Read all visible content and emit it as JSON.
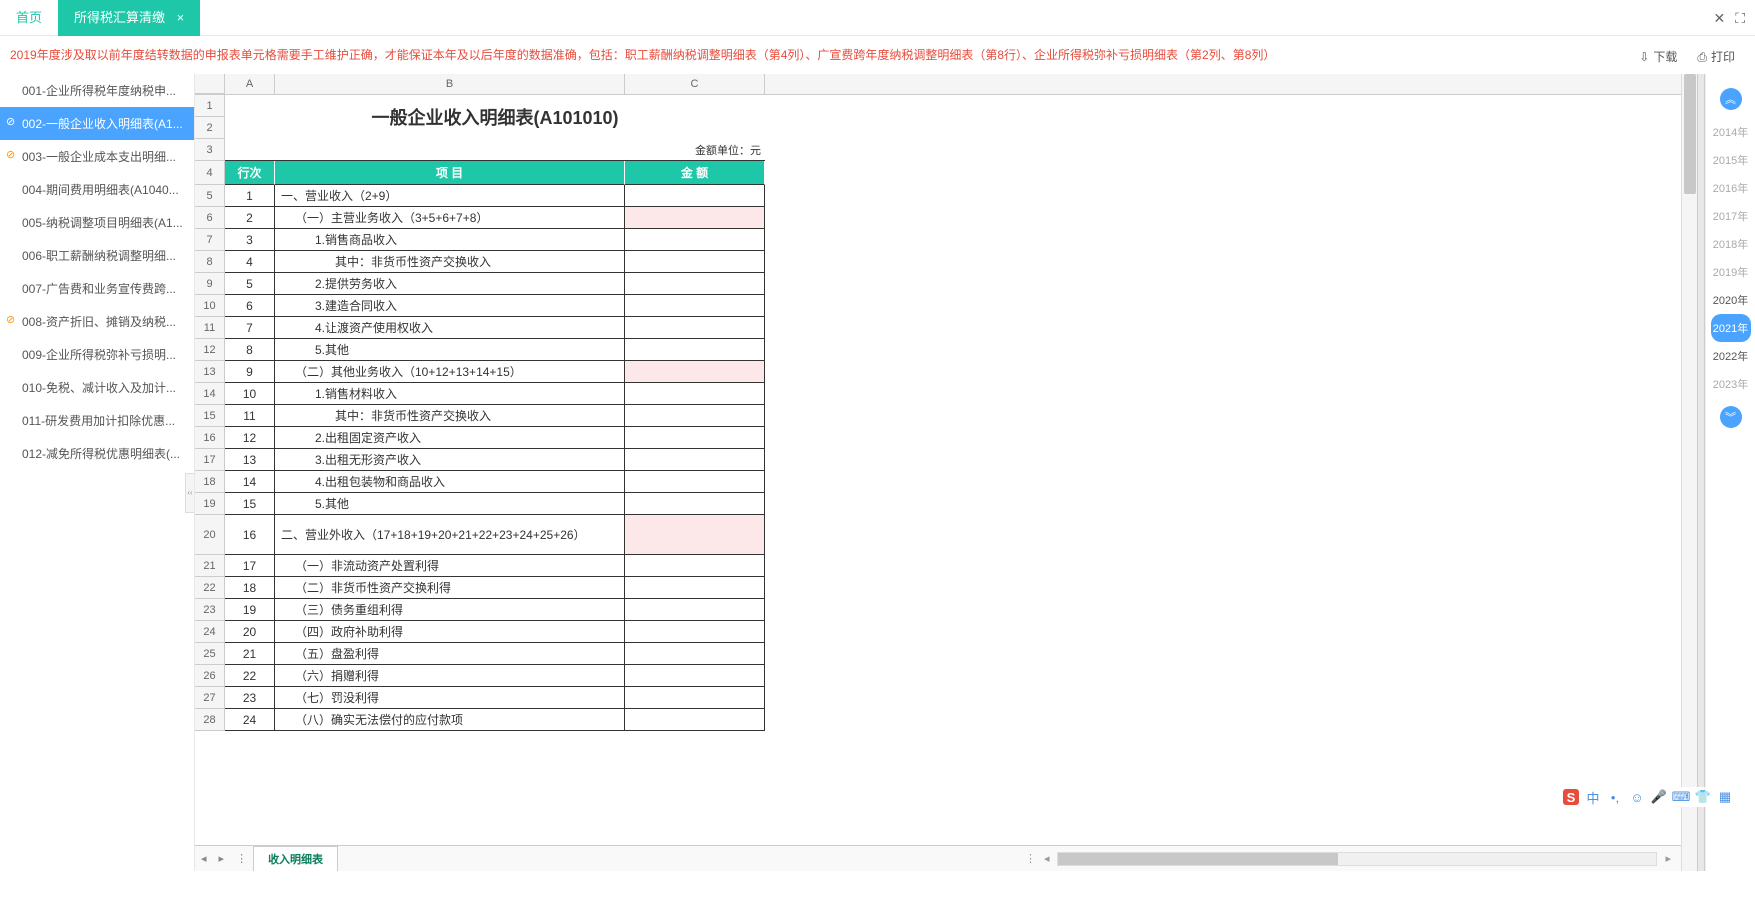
{
  "tabs": {
    "home": "首页",
    "active": "所得税汇算清缴"
  },
  "warning": "2019年度涉及取以前年度结转数据的申报表单元格需要手工维护正确，才能保证本年及以后年度的数据准确，包括：职工薪酬纳税调整明细表（第4列）、广宣费跨年度纳税调整明细表（第8行）、企业所得税弥补亏损明细表（第2列、第8列）",
  "actions": {
    "download": "下载",
    "print": "打印"
  },
  "sidebar": [
    {
      "label": "001-企业所得税年度纳税申...",
      "q": false
    },
    {
      "label": "002-一般企业收入明细表(A1...",
      "q": true,
      "selected": true
    },
    {
      "label": "003-一般企业成本支出明细...",
      "q": true
    },
    {
      "label": "004-期间费用明细表(A1040...",
      "q": false
    },
    {
      "label": "005-纳税调整项目明细表(A1...",
      "q": false
    },
    {
      "label": "006-职工薪酬纳税调整明细...",
      "q": false
    },
    {
      "label": "007-广告费和业务宣传费跨...",
      "q": false
    },
    {
      "label": "008-资产折旧、摊销及纳税...",
      "q": true
    },
    {
      "label": "009-企业所得税弥补亏损明...",
      "q": false
    },
    {
      "label": "010-免税、减计收入及加计...",
      "q": false
    },
    {
      "label": "011-研发费用加计扣除优惠...",
      "q": false
    },
    {
      "label": "012-减免所得税优惠明细表(...",
      "q": false
    }
  ],
  "sheet": {
    "cols": [
      "A",
      "B",
      "C"
    ],
    "title": "一般企业收入明细表(A101010)",
    "unit_label": "金额单位：元",
    "headers": {
      "seq": "行次",
      "item": "项   目",
      "amount": "金   额"
    },
    "rows": [
      {
        "n": "1",
        "t": "一、营业收入（2+9）",
        "pad": 0,
        "pink": false
      },
      {
        "n": "2",
        "t": "（一）主营业务收入（3+5+6+7+8）",
        "pad": 1,
        "pink": true
      },
      {
        "n": "3",
        "t": "1.销售商品收入",
        "pad": 2,
        "pink": false
      },
      {
        "n": "4",
        "t": "其中：非货币性资产交换收入",
        "pad": 3,
        "pink": false
      },
      {
        "n": "5",
        "t": "2.提供劳务收入",
        "pad": 2,
        "pink": false
      },
      {
        "n": "6",
        "t": "3.建造合同收入",
        "pad": 2,
        "pink": false
      },
      {
        "n": "7",
        "t": "4.让渡资产使用权收入",
        "pad": 2,
        "pink": false
      },
      {
        "n": "8",
        "t": "5.其他",
        "pad": 2,
        "pink": false
      },
      {
        "n": "9",
        "t": "（二）其他业务收入（10+12+13+14+15）",
        "pad": 1,
        "pink": true
      },
      {
        "n": "10",
        "t": "1.销售材料收入",
        "pad": 2,
        "pink": false
      },
      {
        "n": "11",
        "t": "其中：非货币性资产交换收入",
        "pad": 3,
        "pink": false
      },
      {
        "n": "12",
        "t": "2.出租固定资产收入",
        "pad": 2,
        "pink": false
      },
      {
        "n": "13",
        "t": "3.出租无形资产收入",
        "pad": 2,
        "pink": false
      },
      {
        "n": "14",
        "t": "4.出租包装物和商品收入",
        "pad": 2,
        "pink": false
      },
      {
        "n": "15",
        "t": "5.其他",
        "pad": 2,
        "pink": false
      },
      {
        "n": "16",
        "t": "二、营业外收入（17+18+19+20+21+22+23+24+25+26）",
        "pad": 0,
        "pink": true,
        "tall": true
      },
      {
        "n": "17",
        "t": "（一）非流动资产处置利得",
        "pad": 1,
        "pink": false
      },
      {
        "n": "18",
        "t": "（二）非货币性资产交换利得",
        "pad": 1,
        "pink": false
      },
      {
        "n": "19",
        "t": "（三）债务重组利得",
        "pad": 1,
        "pink": false
      },
      {
        "n": "20",
        "t": "（四）政府补助利得",
        "pad": 1,
        "pink": false
      },
      {
        "n": "21",
        "t": "（五）盘盈利得",
        "pad": 1,
        "pink": false
      },
      {
        "n": "22",
        "t": "（六）捐赠利得",
        "pad": 1,
        "pink": false
      },
      {
        "n": "23",
        "t": "（七）罚没利得",
        "pad": 1,
        "pink": false
      },
      {
        "n": "24",
        "t": "（八）确实无法偿付的应付款项",
        "pad": 1,
        "pink": false
      }
    ],
    "tab_name": "收入明细表"
  },
  "years": [
    {
      "y": "2014年",
      "cls": ""
    },
    {
      "y": "2015年",
      "cls": ""
    },
    {
      "y": "2016年",
      "cls": ""
    },
    {
      "y": "2017年",
      "cls": ""
    },
    {
      "y": "2018年",
      "cls": ""
    },
    {
      "y": "2019年",
      "cls": ""
    },
    {
      "y": "2020年",
      "cls": "near"
    },
    {
      "y": "2021年",
      "cls": "active"
    },
    {
      "y": "2022年",
      "cls": "near"
    },
    {
      "y": "2023年",
      "cls": ""
    }
  ]
}
